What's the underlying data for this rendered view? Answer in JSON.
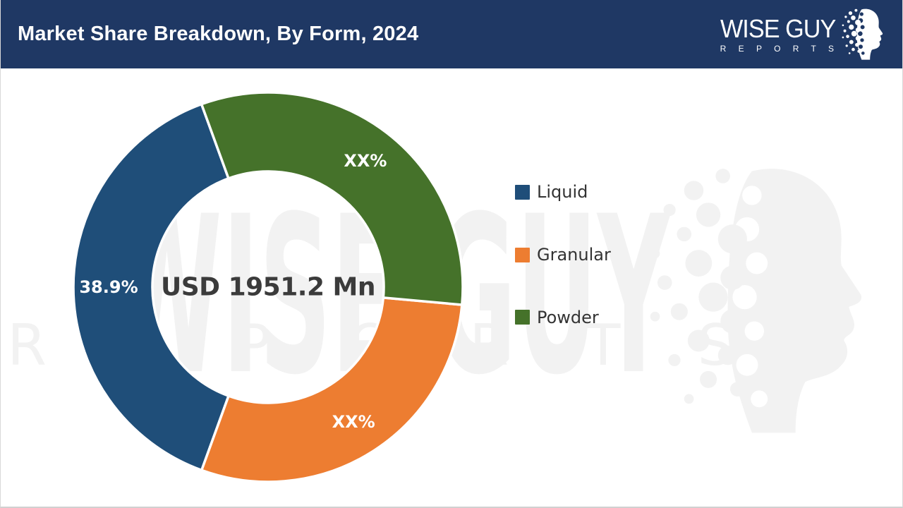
{
  "header": {
    "title": "Market Share Breakdown, By Form, 2024",
    "logo": {
      "line1": "WISE GUY",
      "line2": "R E P O R T S"
    }
  },
  "watermark": {
    "line1": "WISE GUY",
    "line2": "R E P O R T S"
  },
  "chart_data": {
    "type": "pie",
    "subtype": "donut",
    "title": "Market Share Breakdown, By Form, 2024",
    "center_label": "USD 1951.2 Mn",
    "start_angle_deg": 110,
    "direction": "counterclockwise",
    "inner_radius_ratio": 0.595,
    "segments": [
      {
        "label": "Liquid",
        "value_pct": 38.9,
        "display_label": "38.9%",
        "color": "#1F4E79"
      },
      {
        "label": "Granular",
        "value_pct": 29.1,
        "display_label": "XX%",
        "color": "#ED7D31"
      },
      {
        "label": "Powder",
        "value_pct": 32.0,
        "display_label": "XX%",
        "color": "#45722A"
      }
    ],
    "legend_position": "right",
    "legend": [
      "Liquid",
      "Granular",
      "Powder"
    ]
  },
  "colors": {
    "header_bg": "#1F3864",
    "content_bg": "#FFFFFF",
    "watermark": "#F2F2F2",
    "center_text": "#3B3B3B",
    "legend_text": "#333333",
    "slice_label": "#FFFFFF",
    "border": "#D9D9D9"
  }
}
